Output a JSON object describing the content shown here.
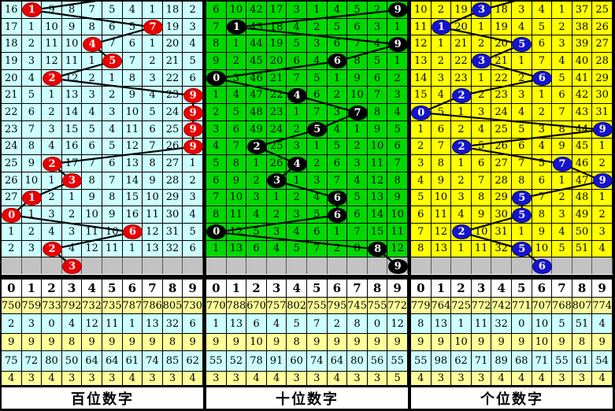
{
  "colors": {
    "hundreds_bg": "#ccffff",
    "tens_bg": "#00d800",
    "ones_bg": "#ffff00",
    "hundreds_ball": "#e80000",
    "hundreds_ball_edge": "#a00000",
    "tens_ball": "#000000",
    "tens_ball_edge": "#000000",
    "ones_ball": "#1414cc",
    "ones_ball_edge": "#000088",
    "gray_row": "#c3c3c3",
    "stat_yellow": "#ffff99",
    "stat_blue": "#ccffff",
    "line": "#000000"
  },
  "header_digits": [
    "0",
    "1",
    "2",
    "3",
    "4",
    "5",
    "6",
    "7",
    "8",
    "9"
  ],
  "panels": [
    {
      "title": "百位数字",
      "cell_bg": "#ccffff",
      "ball_color": "#e80000",
      "ball_edge": "#a00000",
      "grid": [
        [
          "16",
          "1",
          "9",
          "8",
          "7",
          "5",
          "4",
          "1",
          "18",
          "2"
        ],
        [
          "17",
          "1",
          "10",
          "9",
          "8",
          "6",
          "5",
          "7",
          "19",
          "3"
        ],
        [
          "18",
          "2",
          "11",
          "10",
          "4",
          "7",
          "6",
          "1",
          "20",
          "4"
        ],
        [
          "19",
          "3",
          "12",
          "11",
          "1",
          "5",
          "7",
          "2",
          "21",
          "5"
        ],
        [
          "20",
          "4",
          "2",
          "12",
          "2",
          "1",
          "8",
          "3",
          "22",
          "6"
        ],
        [
          "21",
          "5",
          "1",
          "13",
          "3",
          "2",
          "9",
          "4",
          "23",
          "9"
        ],
        [
          "22",
          "6",
          "2",
          "14",
          "4",
          "3",
          "10",
          "5",
          "24",
          "9"
        ],
        [
          "23",
          "7",
          "3",
          "15",
          "5",
          "4",
          "11",
          "6",
          "25",
          "9"
        ],
        [
          "24",
          "8",
          "4",
          "16",
          "6",
          "5",
          "12",
          "7",
          "26",
          "9"
        ],
        [
          "25",
          "9",
          "2",
          "17",
          "7",
          "6",
          "13",
          "8",
          "27",
          "1"
        ],
        [
          "26",
          "10",
          "1",
          "3",
          "8",
          "7",
          "14",
          "9",
          "28",
          "2"
        ],
        [
          "27",
          "1",
          "2",
          "1",
          "9",
          "8",
          "15",
          "10",
          "29",
          "3"
        ],
        [
          "0",
          "1",
          "3",
          "2",
          "10",
          "9",
          "16",
          "11",
          "30",
          "4"
        ],
        [
          "1",
          "2",
          "4",
          "3",
          "11",
          "10",
          "6",
          "12",
          "31",
          "5"
        ],
        [
          "2",
          "3",
          "2",
          "4",
          "12",
          "11",
          "1",
          "13",
          "32",
          "6"
        ]
      ],
      "ball_cols": [
        1,
        7,
        4,
        5,
        2,
        9,
        9,
        9,
        9,
        2,
        3,
        1,
        0,
        6,
        2
      ],
      "gray_ball_col": 3,
      "stub_exit_col": 8.3,
      "stats": [
        [
          "750",
          "759",
          "733",
          "792",
          "732",
          "735",
          "787",
          "786",
          "805",
          "730"
        ],
        [
          "2",
          "3",
          "0",
          "4",
          "12",
          "11",
          "1",
          "13",
          "32",
          "6"
        ],
        [
          "9",
          "9",
          "9",
          "8",
          "9",
          "9",
          "9",
          "9",
          "8",
          "9"
        ],
        [
          "75",
          "72",
          "80",
          "50",
          "64",
          "64",
          "61",
          "74",
          "85",
          "62"
        ],
        [
          "4",
          "3",
          "4",
          "3",
          "3",
          "3",
          "4",
          "3",
          "3",
          "4"
        ]
      ]
    },
    {
      "title": "十位数字",
      "cell_bg": "#00d800",
      "ball_color": "#000000",
      "ball_edge": "#000000",
      "grid": [
        [
          "6",
          "10",
          "42",
          "17",
          "3",
          "1",
          "4",
          "5",
          "2",
          "9"
        ],
        [
          "7",
          "1",
          "43",
          "18",
          "4",
          "2",
          "5",
          "6",
          "3",
          "1"
        ],
        [
          "8",
          "1",
          "44",
          "19",
          "5",
          "3",
          "6",
          "7",
          "4",
          "9"
        ],
        [
          "9",
          "2",
          "45",
          "20",
          "6",
          "4",
          "6",
          "8",
          "5",
          "1"
        ],
        [
          "0",
          "3",
          "46",
          "21",
          "7",
          "5",
          "1",
          "9",
          "6",
          "2"
        ],
        [
          "1",
          "4",
          "47",
          "22",
          "4",
          "6",
          "2",
          "10",
          "7",
          "3"
        ],
        [
          "2",
          "5",
          "48",
          "23",
          "1",
          "7",
          "3",
          "7",
          "8",
          "4"
        ],
        [
          "3",
          "6",
          "49",
          "24",
          "2",
          "5",
          "4",
          "1",
          "9",
          "5"
        ],
        [
          "4",
          "7",
          "2",
          "25",
          "3",
          "1",
          "5",
          "2",
          "10",
          "6"
        ],
        [
          "5",
          "8",
          "1",
          "26",
          "4",
          "2",
          "6",
          "3",
          "11",
          "7"
        ],
        [
          "6",
          "9",
          "2",
          "3",
          "1",
          "3",
          "7",
          "4",
          "12",
          "8"
        ],
        [
          "7",
          "10",
          "3",
          "1",
          "2",
          "4",
          "6",
          "5",
          "13",
          "9"
        ],
        [
          "8",
          "11",
          "4",
          "2",
          "3",
          "5",
          "6",
          "6",
          "14",
          "10"
        ],
        [
          "0",
          "12",
          "5",
          "3",
          "4",
          "6",
          "1",
          "7",
          "15",
          "11"
        ],
        [
          "1",
          "13",
          "6",
          "4",
          "5",
          "7",
          "2",
          "8",
          "8",
          "12"
        ]
      ],
      "ball_cols": [
        9,
        1,
        9,
        6,
        0,
        4,
        7,
        5,
        2,
        4,
        3,
        6,
        6,
        0,
        8
      ],
      "gray_ball_col": 9,
      "stub_exit_col": null,
      "stats": [
        [
          "770",
          "788",
          "670",
          "757",
          "802",
          "755",
          "795",
          "745",
          "755",
          "772"
        ],
        [
          "1",
          "13",
          "6",
          "4",
          "5",
          "7",
          "2",
          "8",
          "0",
          "12"
        ],
        [
          "9",
          "9",
          "10",
          "9",
          "8",
          "9",
          "9",
          "9",
          "9",
          "9"
        ],
        [
          "55",
          "52",
          "78",
          "91",
          "60",
          "74",
          "64",
          "80",
          "56",
          "55"
        ],
        [
          "3",
          "3",
          "4",
          "4",
          "3",
          "3",
          "4",
          "3",
          "3",
          "5"
        ]
      ]
    },
    {
      "title": "个位数字",
      "cell_bg": "#ffff00",
      "ball_color": "#1414cc",
      "ball_edge": "#000088",
      "grid": [
        [
          "10",
          "2",
          "19",
          "3",
          "18",
          "3",
          "4",
          "1",
          "37",
          "25"
        ],
        [
          "11",
          "1",
          "20",
          "1",
          "19",
          "4",
          "5",
          "2",
          "38",
          "26"
        ],
        [
          "12",
          "1",
          "21",
          "2",
          "20",
          "5",
          "6",
          "3",
          "39",
          "27"
        ],
        [
          "13",
          "2",
          "22",
          "3",
          "21",
          "1",
          "7",
          "4",
          "40",
          "28"
        ],
        [
          "14",
          "3",
          "23",
          "1",
          "22",
          "2",
          "6",
          "5",
          "41",
          "29"
        ],
        [
          "15",
          "4",
          "2",
          "2",
          "23",
          "3",
          "1",
          "6",
          "42",
          "30"
        ],
        [
          "0",
          "5",
          "1",
          "3",
          "24",
          "4",
          "2",
          "7",
          "43",
          "31"
        ],
        [
          "1",
          "6",
          "2",
          "4",
          "25",
          "5",
          "3",
          "8",
          "44",
          "9"
        ],
        [
          "2",
          "7",
          "2",
          "5",
          "26",
          "6",
          "4",
          "9",
          "45",
          "1"
        ],
        [
          "3",
          "8",
          "1",
          "6",
          "27",
          "7",
          "5",
          "7",
          "46",
          "2"
        ],
        [
          "4",
          "9",
          "2",
          "7",
          "28",
          "8",
          "6",
          "1",
          "47",
          "9"
        ],
        [
          "5",
          "10",
          "3",
          "8",
          "29",
          "5",
          "7",
          "2",
          "48",
          "1"
        ],
        [
          "6",
          "11",
          "4",
          "9",
          "30",
          "5",
          "8",
          "3",
          "49",
          "2"
        ],
        [
          "7",
          "12",
          "2",
          "10",
          "31",
          "1",
          "9",
          "4",
          "50",
          "3"
        ],
        [
          "8",
          "13",
          "1",
          "11",
          "32",
          "5",
          "10",
          "5",
          "51",
          "4"
        ]
      ],
      "ball_cols": [
        3,
        1,
        5,
        3,
        6,
        2,
        0,
        9,
        2,
        7,
        9,
        5,
        5,
        2,
        5
      ],
      "gray_ball_col": 6,
      "stub_exit_col": 6.8,
      "stats": [
        [
          "779",
          "764",
          "725",
          "772",
          "742",
          "771",
          "707",
          "768",
          "807",
          "774"
        ],
        [
          "8",
          "13",
          "1",
          "11",
          "32",
          "0",
          "10",
          "5",
          "51",
          "4"
        ],
        [
          "9",
          "9",
          "10",
          "9",
          "9",
          "9",
          "10",
          "9",
          "8",
          "9"
        ],
        [
          "55",
          "98",
          "62",
          "71",
          "89",
          "68",
          "71",
          "55",
          "61",
          "54"
        ],
        [
          "4",
          "3",
          "3",
          "3",
          "4",
          "4",
          "4",
          "3",
          "3",
          "4"
        ]
      ]
    }
  ]
}
